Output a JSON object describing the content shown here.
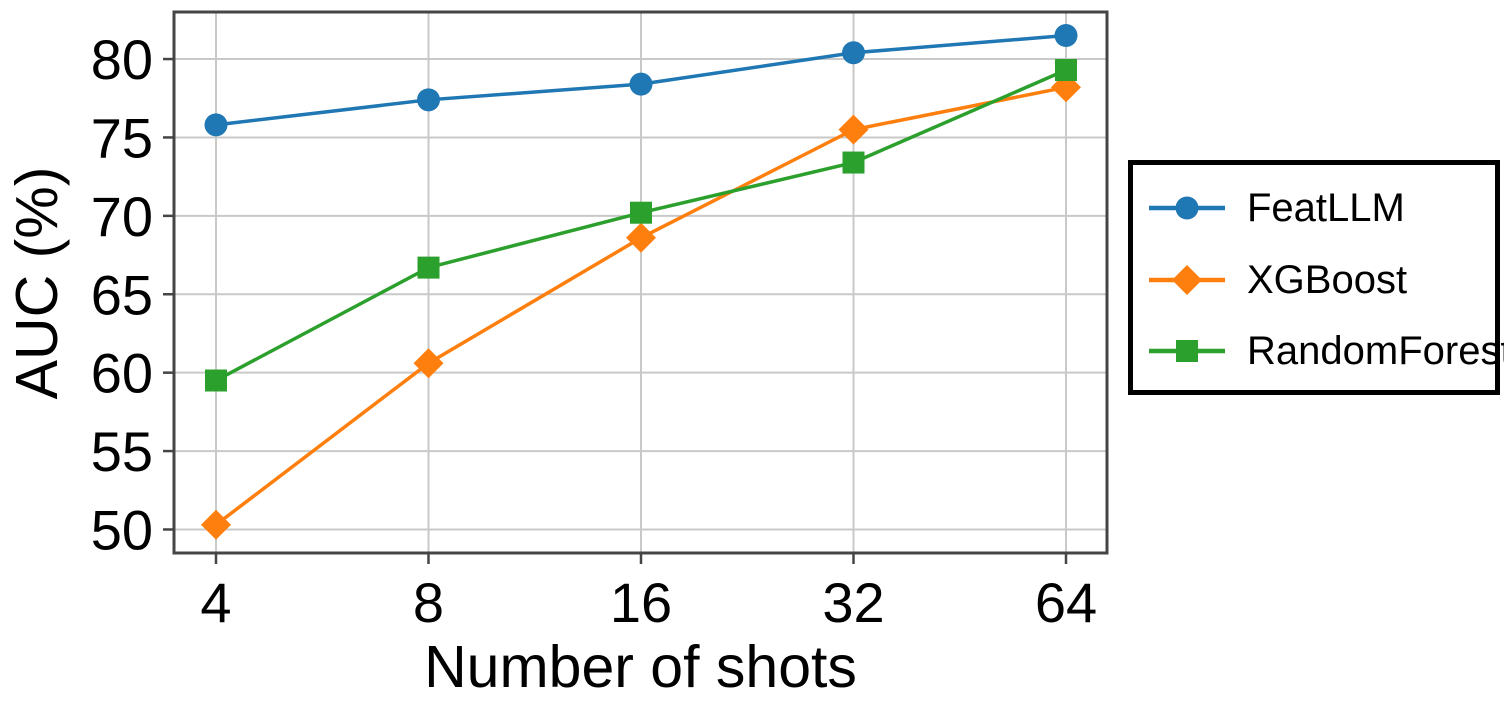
{
  "chart_data": {
    "type": "line",
    "title": "",
    "xlabel": "Number of shots",
    "ylabel": "AUC (%)",
    "categories": [
      "4",
      "8",
      "16",
      "32",
      "64"
    ],
    "yticks": [
      50,
      55,
      60,
      65,
      70,
      75,
      80
    ],
    "ylim": [
      48.5,
      83.0
    ],
    "grid": true,
    "legend_position": "outside-right",
    "series": [
      {
        "name": "FeatLLM",
        "color": "#1f77b4",
        "marker": "circle",
        "values": [
          75.8,
          77.4,
          78.4,
          80.4,
          81.5
        ]
      },
      {
        "name": "XGBoost",
        "color": "#ff7f0e",
        "marker": "diamond",
        "values": [
          50.3,
          60.6,
          68.6,
          75.5,
          78.2
        ]
      },
      {
        "name": "RandomForest",
        "color": "#2ca02c",
        "marker": "square",
        "values": [
          59.5,
          66.7,
          70.2,
          73.4,
          79.3
        ]
      }
    ],
    "colors": {
      "grid": "#c9c9c9",
      "spine": "#454545",
      "text": "#000000",
      "background": "#ffffff"
    }
  }
}
